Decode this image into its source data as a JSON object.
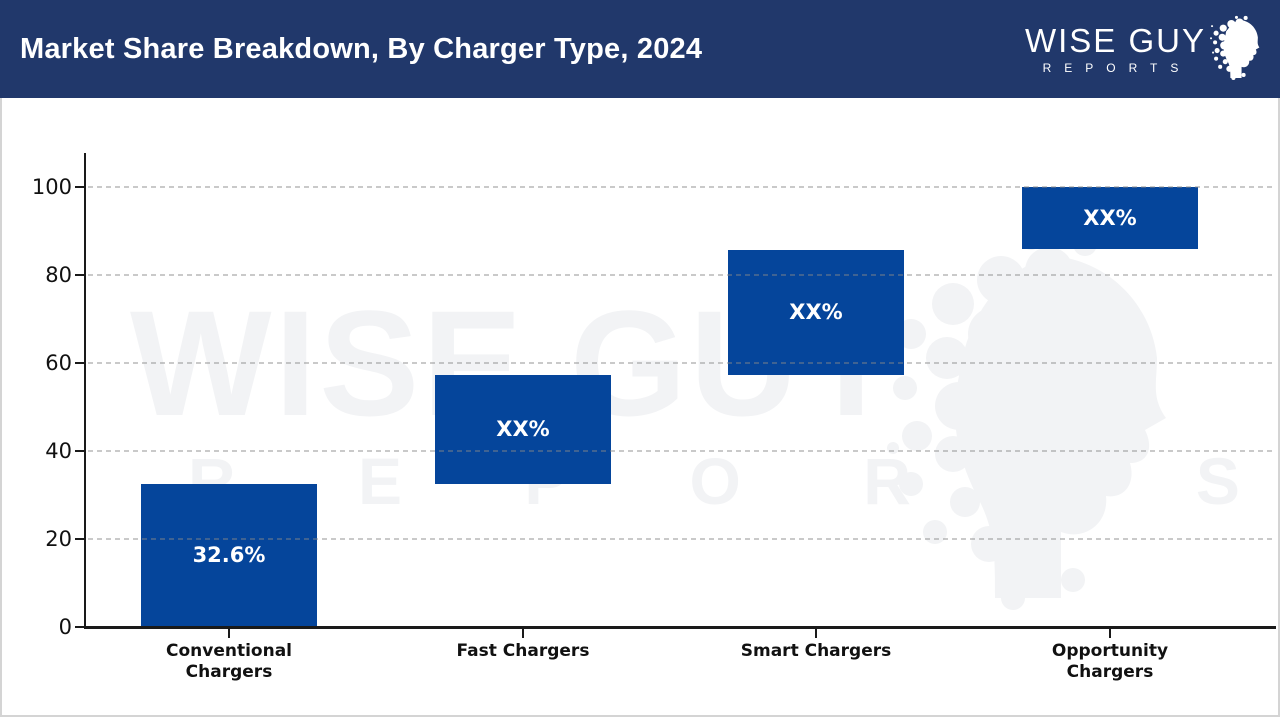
{
  "header": {
    "title": "Market Share Breakdown, By Charger Type, 2024",
    "logo": {
      "wordmark": "WISE GUY",
      "subtext": "REPORTS"
    }
  },
  "watermark": {
    "wordmark": "WISE GUY",
    "subtext": "R E P O R T S"
  },
  "colors": {
    "header_bg": "#21386B",
    "bar": "#05459B",
    "bar_label": "#FFFFFF",
    "axis": "#1A1A1A",
    "grid": "#888888",
    "border": "#D4D4D4",
    "watermark": "#F2F3F5"
  },
  "chart_data": {
    "type": "bar",
    "subtype": "waterfall",
    "title": "Market Share Breakdown, By Charger Type, 2024",
    "categories": [
      "Conventional Chargers",
      "Fast Chargers",
      "Smart Chargers",
      "Opportunity Chargers"
    ],
    "segments": [
      {
        "category": "Conventional Chargers",
        "start": 0,
        "end": 32.6,
        "label": "32.6%"
      },
      {
        "category": "Fast Chargers",
        "start": 32.6,
        "end": 57.3,
        "label": "XX%"
      },
      {
        "category": "Smart Chargers",
        "start": 57.3,
        "end": 85.7,
        "label": "XX%"
      },
      {
        "category": "Opportunity Chargers",
        "start": 85.9,
        "end": 100,
        "label": "XX%"
      }
    ],
    "y_ticks": [
      0,
      20,
      40,
      60,
      80,
      100
    ],
    "ylim": [
      0,
      107
    ],
    "xlabel": "",
    "ylabel": "",
    "grid": "horizontal-dashed",
    "legend": "none"
  }
}
